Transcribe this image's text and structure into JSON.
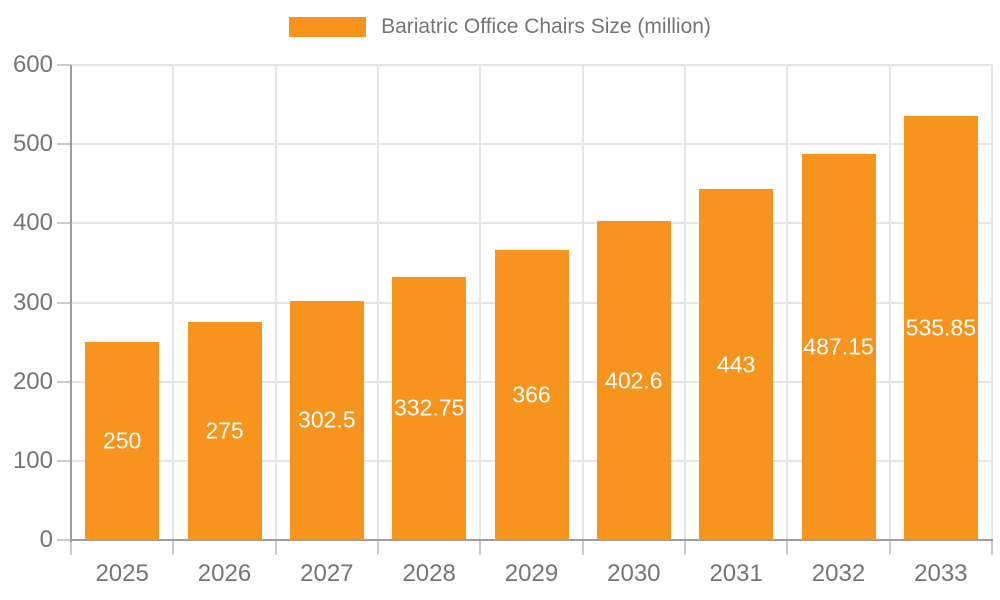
{
  "chart_data": {
    "type": "bar",
    "title": "Bariatric Office Chairs Size (million)",
    "legend_label": "Bariatric Office Chairs Size (million)",
    "legend_position": "top-center",
    "categories": [
      "2025",
      "2026",
      "2027",
      "2028",
      "2029",
      "2030",
      "2031",
      "2032",
      "2033"
    ],
    "series": [
      {
        "name": "Bariatric Office Chairs Size (million)",
        "values": [
          250,
          275,
          302.5,
          332.75,
          366,
          402.6,
          443,
          487.15,
          535.85
        ]
      }
    ],
    "value_labels": [
      "250",
      "275",
      "302.5",
      "332.75",
      "366",
      "402.6",
      "443",
      "487.15",
      "535.85"
    ],
    "xlabel": "",
    "ylabel": "",
    "ylim": [
      0,
      600
    ],
    "yticks": [
      0,
      100,
      200,
      300,
      400,
      500,
      600
    ],
    "grid": true,
    "legend_visible": true,
    "colors": {
      "bar": "#F7941E",
      "value_label": "#FFFFFF",
      "grid_line": "#E6E6E6",
      "axis_line": "#9E9E9E",
      "tick_mark": "#CCCCCC",
      "tick_label": "#757575",
      "legend_text": "#757575",
      "background": "#FFFFFF"
    }
  }
}
